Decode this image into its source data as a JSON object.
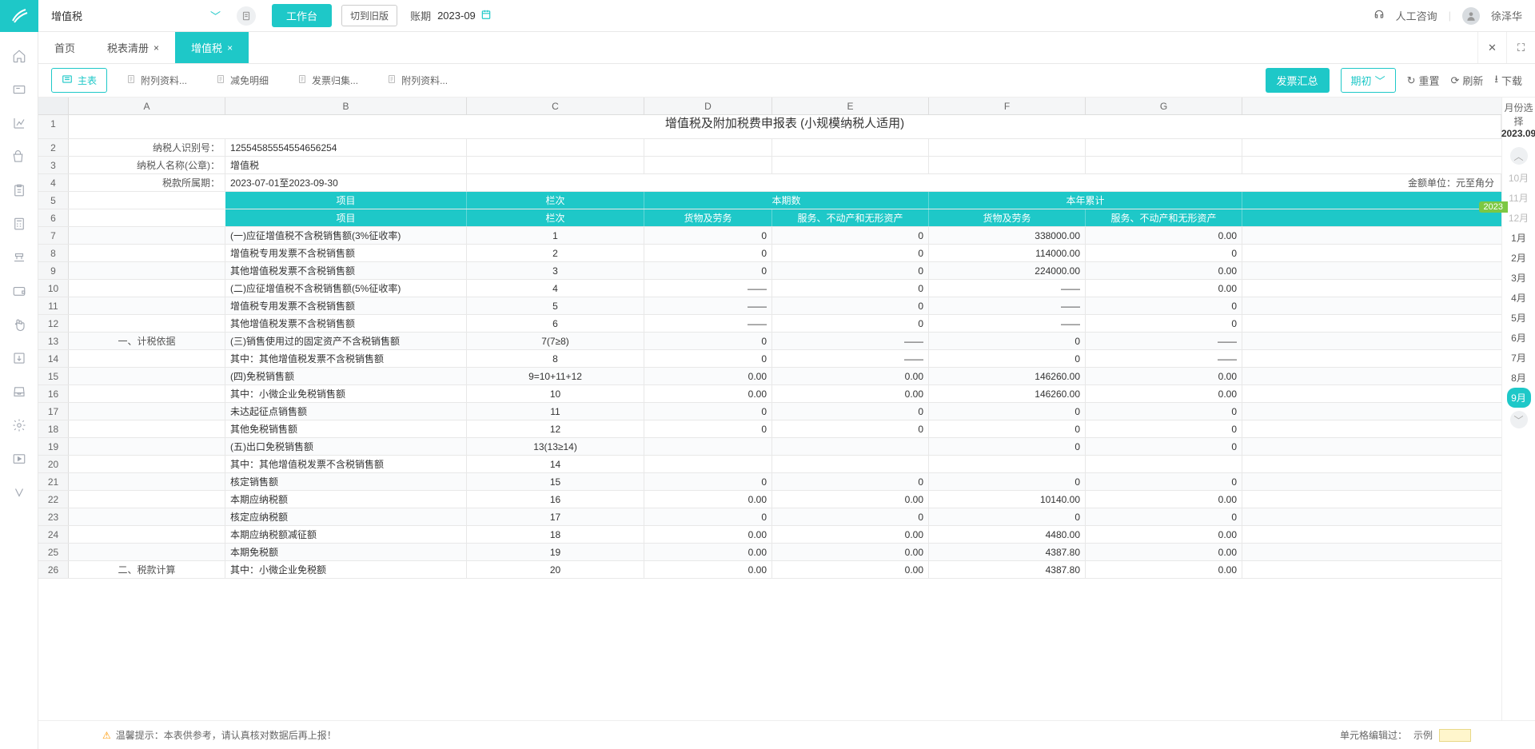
{
  "header": {
    "company": "增值税",
    "workbench": "工作台",
    "old_version": "切到旧版",
    "period_label": "账期",
    "period_value": "2023-09",
    "consult": "人工咨询",
    "username": "徐泽华"
  },
  "tabs": [
    {
      "label": "首页",
      "closable": false,
      "active": false
    },
    {
      "label": "税表清册",
      "closable": true,
      "active": false
    },
    {
      "label": "增值税",
      "closable": true,
      "active": true
    }
  ],
  "subtabs": [
    {
      "label": "主表",
      "active": true
    },
    {
      "label": "附列资料...",
      "active": false
    },
    {
      "label": "减免明细",
      "active": false
    },
    {
      "label": "发票归集...",
      "active": false
    },
    {
      "label": "附列资料...",
      "active": false
    }
  ],
  "toolbar": {
    "invoice_summary": "发票汇总",
    "period_init": "期初",
    "reset": "重置",
    "refresh": "刷新",
    "download": "下载"
  },
  "columns": [
    "A",
    "B",
    "C",
    "D",
    "E",
    "F",
    "G"
  ],
  "form": {
    "title": "增值税及附加税费申报表 (小规模纳税人适用)",
    "taxpayer_id_label": "纳税人识别号：",
    "taxpayer_id": "12554585554554656254",
    "taxpayer_name_label": "纳税人名称(公章)：",
    "taxpayer_name": "增值税",
    "tax_period_label": "税款所属期：",
    "tax_period": "2023-07-01至2023-09-30",
    "amount_unit": "金额单位：元至角分",
    "header1": {
      "item": "项目",
      "col": "栏次",
      "current": "本期数",
      "year": "本年累计"
    },
    "header2": {
      "d": "货物及劳务",
      "e": "服务、不动产和无形资产",
      "f": "货物及劳务",
      "g": "服务、不动产和无形资产"
    },
    "section1": "一、计税依据",
    "section2": "二、税款计算",
    "rows": [
      {
        "b": "(一)应征增值税不含税销售额(3%征收率)",
        "c": "1",
        "d": "0",
        "e": "0",
        "f": "338000.00",
        "g": "0.00"
      },
      {
        "b": "增值税专用发票不含税销售额",
        "c": "2",
        "d": "0",
        "e": "0",
        "f": "114000.00",
        "g": "0"
      },
      {
        "b": "其他增值税发票不含税销售额",
        "c": "3",
        "d": "0",
        "e": "0",
        "f": "224000.00",
        "g": "0.00"
      },
      {
        "b": "(二)应征增值税不含税销售额(5%征收率)",
        "c": "4",
        "d": "——",
        "e": "0",
        "f": "——",
        "g": "0.00"
      },
      {
        "b": "增值税专用发票不含税销售额",
        "c": "5",
        "d": "——",
        "e": "0",
        "f": "——",
        "g": "0"
      },
      {
        "b": "其他增值税发票不含税销售额",
        "c": "6",
        "d": "——",
        "e": "0",
        "f": "——",
        "g": "0"
      },
      {
        "b": "(三)销售使用过的固定资产不含税销售额",
        "c": "7(7≥8)",
        "d": "0",
        "e": "——",
        "f": "0",
        "g": "——"
      },
      {
        "b": "其中：其他增值税发票不含税销售额",
        "c": "8",
        "d": "0",
        "e": "——",
        "f": "0",
        "g": "——"
      },
      {
        "b": "(四)免税销售额",
        "c": "9=10+11+12",
        "d": "0.00",
        "e": "0.00",
        "f": "146260.00",
        "g": "0.00"
      },
      {
        "b": "其中：小微企业免税销售额",
        "c": "10",
        "d": "0.00",
        "e": "0.00",
        "f": "146260.00",
        "g": "0.00"
      },
      {
        "b": "未达起征点销售额",
        "c": "11",
        "d": "0",
        "e": "0",
        "f": "0",
        "g": "0"
      },
      {
        "b": "其他免税销售额",
        "c": "12",
        "d": "0",
        "e": "0",
        "f": "0",
        "g": "0"
      },
      {
        "b": "(五)出口免税销售额",
        "c": "13(13≥14)",
        "d": "",
        "e": "",
        "f": "0",
        "g": "0"
      },
      {
        "b": "其中：其他增值税发票不含税销售额",
        "c": "14",
        "d": "",
        "e": "",
        "f": "",
        "g": ""
      },
      {
        "b": "核定销售额",
        "c": "15",
        "d": "0",
        "e": "0",
        "f": "0",
        "g": "0"
      },
      {
        "b": "本期应纳税额",
        "c": "16",
        "d": "0.00",
        "e": "0.00",
        "f": "10140.00",
        "g": "0.00"
      },
      {
        "b": "核定应纳税额",
        "c": "17",
        "d": "0",
        "e": "0",
        "f": "0",
        "g": "0"
      },
      {
        "b": "本期应纳税额减征额",
        "c": "18",
        "d": "0.00",
        "e": "0.00",
        "f": "4480.00",
        "g": "0.00"
      },
      {
        "b": "本期免税额",
        "c": "19",
        "d": "0.00",
        "e": "0.00",
        "f": "4387.80",
        "g": "0.00"
      },
      {
        "b": "其中：小微企业免税额",
        "c": "20",
        "d": "0.00",
        "e": "0.00",
        "f": "4387.80",
        "g": "0.00"
      }
    ]
  },
  "month_panel": {
    "title": "月份选择",
    "year": "2023.09",
    "badge_year": "2023",
    "months": [
      {
        "label": "10月",
        "dim": true
      },
      {
        "label": "11月",
        "dim": true
      },
      {
        "label": "12月",
        "dim": true
      },
      {
        "label": "1月",
        "dim": false
      },
      {
        "label": "2月",
        "dim": false
      },
      {
        "label": "3月",
        "dim": false
      },
      {
        "label": "4月",
        "dim": false
      },
      {
        "label": "5月",
        "dim": false
      },
      {
        "label": "6月",
        "dim": false
      },
      {
        "label": "7月",
        "dim": false
      },
      {
        "label": "8月",
        "dim": false
      },
      {
        "label": "9月",
        "dim": false,
        "active": true
      }
    ]
  },
  "footer": {
    "tip_prefix": "温馨提示：",
    "tip": "本表供参考，请认真核对数据后再上报！",
    "cell_edited": "单元格编辑过：",
    "example": "示例"
  }
}
